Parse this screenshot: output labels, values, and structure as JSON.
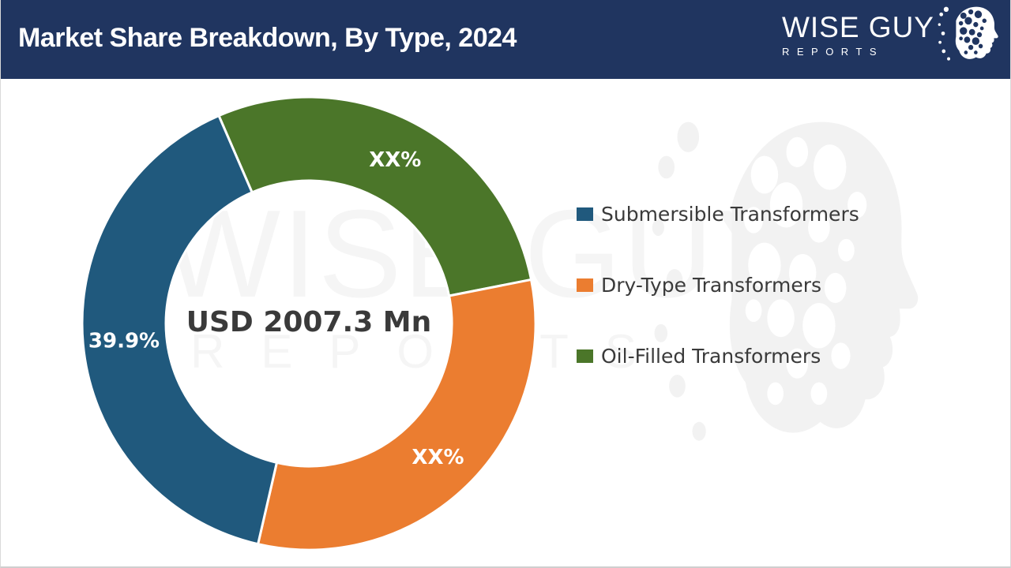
{
  "header": {
    "title": "Market Share Breakdown, By Type, 2024",
    "bg_color": "#203560",
    "logo": {
      "line1": "WISE GUY",
      "line2": "REPORTS"
    }
  },
  "watermark": {
    "line1": "WISE GUY",
    "line2": "REPORTS"
  },
  "legend": {
    "items": [
      {
        "label": "Submersible Transformers",
        "color": "#20597D"
      },
      {
        "label": "Dry-Type Transformers",
        "color": "#EB7D30"
      },
      {
        "label": "Oil-Filled Transformers",
        "color": "#4B7629"
      }
    ]
  },
  "chart_data": {
    "type": "pie",
    "subtype": "donut",
    "title": "Market Share Breakdown, By Type, 2024",
    "center_label": "USD 2007.3 Mn",
    "center_label_color": "#3a3a3a",
    "legend_position": "right",
    "start_angle_deg": -23.4,
    "clockwise": true,
    "inner_radius_ratio": 0.63,
    "segments": [
      {
        "name": "Oil-Filled Transformers",
        "value_pct": 28.4,
        "label": "XX%",
        "color": "#4B7629"
      },
      {
        "name": "Dry-Type Transformers",
        "value_pct": 31.7,
        "label": "XX%",
        "color": "#EB7D30"
      },
      {
        "name": "Submersible Transformers",
        "value_pct": 39.9,
        "label": "39.9%",
        "color": "#20597D"
      }
    ]
  }
}
